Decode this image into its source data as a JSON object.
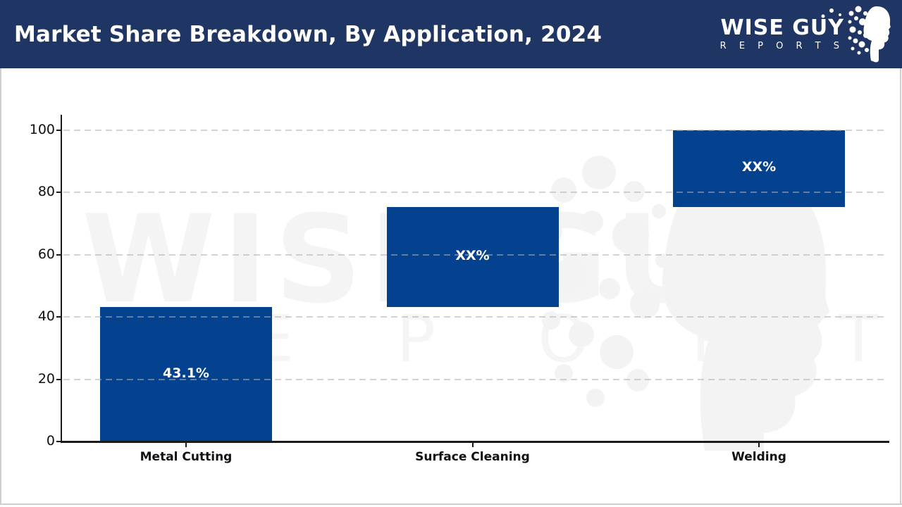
{
  "header": {
    "title": "Market Share Breakdown, By Application, 2024",
    "logo": {
      "line1": "WISE GUY",
      "line2": "R E P O R T S"
    }
  },
  "watermark": {
    "line1": "WISE GUY",
    "line2": "R E P O R T S"
  },
  "chart_data": {
    "type": "bar",
    "subtype": "floating-waterfall",
    "title": "Market Share Breakdown, By Application, 2024",
    "categories": [
      "Metal Cutting",
      "Surface Cleaning",
      "Welding"
    ],
    "bars": [
      {
        "category": "Metal Cutting",
        "start": 0,
        "end": 43.1,
        "label": "43.1%",
        "value_shown": "43.1%"
      },
      {
        "category": "Surface Cleaning",
        "start": 43.1,
        "end": 75.4,
        "label": "XX%",
        "value_shown": "XX%"
      },
      {
        "category": "Welding",
        "start": 75.4,
        "end": 100,
        "label": "XX%",
        "value_shown": "XX%"
      }
    ],
    "yticks": [
      0,
      20,
      40,
      60,
      80,
      100
    ],
    "ylim": [
      0,
      105
    ],
    "xlabel": "",
    "ylabel": "",
    "grid": "horizontal-dashed",
    "legend": "none",
    "colors": {
      "bar": "#04418f",
      "bar_label": "#ffffff",
      "axis": "#1a1a1a",
      "grid": "#cccccc",
      "header_bg": "#1f3564",
      "watermark": "#f4f4f4",
      "border": "#cfcfcf"
    }
  }
}
